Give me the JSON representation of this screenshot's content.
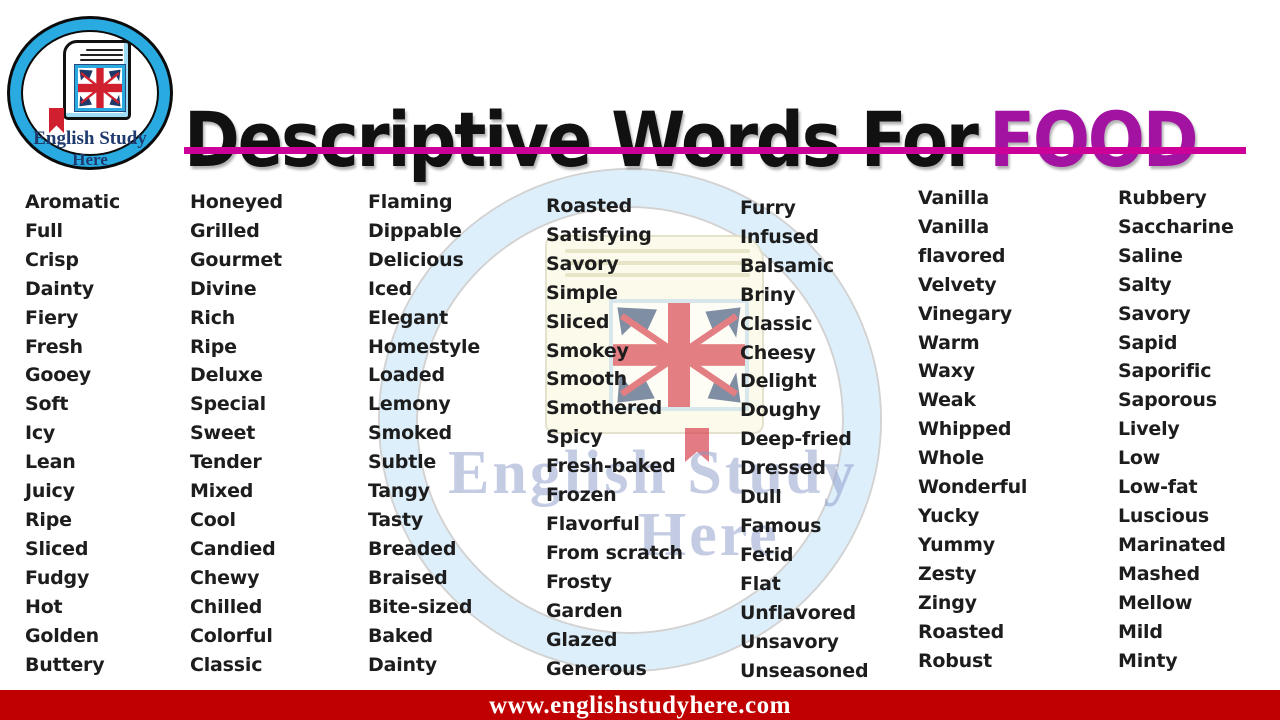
{
  "header": {
    "title": "Descriptive Words For",
    "title_accent": "FOOD"
  },
  "logo": {
    "line1": "English Study",
    "line2": "Here",
    "icons": [
      "book-icon",
      "uk-flag-icon",
      "bookmark-ribbon-icon"
    ]
  },
  "watermark": {
    "line1": "English Study",
    "line2": "Here"
  },
  "footer": {
    "url": "www.englishstudyhere.com"
  },
  "colors": {
    "accent_purple": "#A313A1",
    "underline_magenta": "#CC0099",
    "bar_red": "#C00000",
    "logo_cyan": "#29ABE2",
    "logo_navy": "#1F3A6E",
    "word_text": "#1D1D1D",
    "watermark_blue": "#DCEFFB"
  },
  "columns": [
    [
      "Aromatic",
      "Full",
      "Crisp",
      "Dainty",
      "Fiery",
      "Fresh",
      "Gooey",
      "Soft",
      "Icy",
      "Lean",
      "Juicy",
      "Ripe",
      "Sliced",
      "Fudgy",
      "Hot",
      "Golden",
      "Buttery"
    ],
    [
      "Honeyed",
      "Grilled",
      "Gourmet",
      "Divine",
      "Rich",
      "Ripe",
      "Deluxe",
      "Special",
      "Sweet",
      "Tender",
      "Mixed",
      "Cool",
      "Candied",
      "Chewy",
      "Chilled",
      "Colorful",
      "Classic"
    ],
    [
      "Flaming",
      "Dippable",
      "Delicious",
      "Iced",
      "Elegant",
      "Homestyle",
      "Loaded",
      "Lemony",
      "Smoked",
      "Subtle",
      "Tangy",
      "Tasty",
      "Breaded",
      "Braised",
      "Bite-sized",
      "Baked",
      "Dainty"
    ],
    [
      "Roasted",
      "Satisfying",
      "Savory",
      "Simple",
      "Sliced",
      "Smokey",
      "Smooth",
      "Smothered",
      "Spicy",
      "Fresh-baked",
      "Frozen",
      "Flavorful",
      "From scratch",
      "Frosty",
      "Garden",
      "Glazed",
      "Generous"
    ],
    [
      "Furry",
      "Infused",
      "Balsamic",
      "Briny",
      "Classic",
      "Cheesy",
      "Delight",
      "Doughy",
      "Deep-fried",
      "Dressed",
      "Dull",
      "Famous",
      "Fetid",
      "Flat",
      "Unflavored",
      "Unsavory",
      "Unseasoned"
    ],
    [
      "Vanilla",
      "Vanilla",
      "flavored",
      "Velvety",
      "Vinegary",
      "Warm",
      "Waxy",
      "Weak",
      "Whipped",
      "Whole",
      "Wonderful",
      "Yucky",
      "Yummy",
      "Zesty",
      "Zingy",
      "Roasted",
      "Robust"
    ],
    [
      "Rubbery",
      "Saccharine",
      "Saline",
      "Salty",
      "Savory",
      "Sapid",
      "Saporific",
      "Saporous",
      "Lively",
      "Low",
      "Low-fat",
      "Luscious",
      "Marinated",
      "Mashed",
      "Mellow",
      "Mild",
      "Minty"
    ]
  ]
}
